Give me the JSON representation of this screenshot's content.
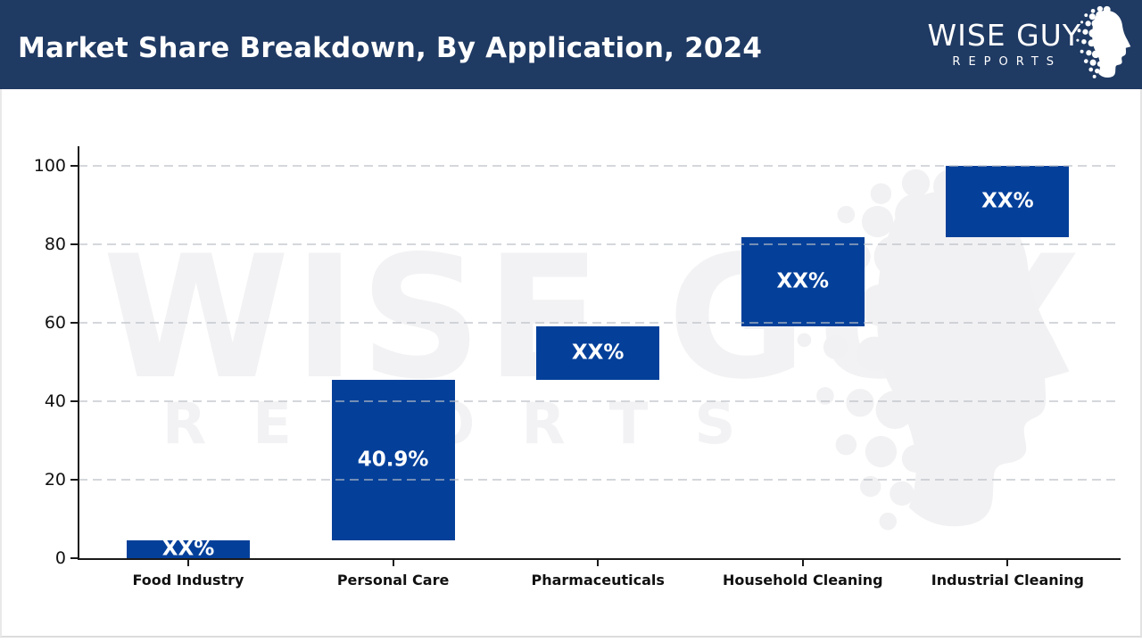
{
  "header": {
    "title": "Market Share Breakdown, By Application, 2024"
  },
  "logo": {
    "line1": "WISE GUY",
    "line2": "REPORTS"
  },
  "watermark": {
    "line1": "WISE GUY",
    "line2": "REPORTS"
  },
  "chart_data": {
    "type": "bar",
    "subtype": "floating-waterfall",
    "title": "Market Share Breakdown, By Application, 2024",
    "categories": [
      "Food Industry",
      "Personal Care",
      "Pharmaceuticals",
      "Household Cleaning",
      "Industrial Cleaning"
    ],
    "bars": [
      {
        "category": "Food Industry",
        "start": 0,
        "end": 4.5,
        "label": "XX%"
      },
      {
        "category": "Personal Care",
        "start": 4.5,
        "end": 45.4,
        "label": "40.9%"
      },
      {
        "category": "Pharmaceuticals",
        "start": 45.4,
        "end": 59.2,
        "label": "XX%"
      },
      {
        "category": "Household Cleaning",
        "start": 59.2,
        "end": 81.8,
        "label": "XX%"
      },
      {
        "category": "Industrial Cleaning",
        "start": 81.8,
        "end": 100,
        "label": "XX%"
      }
    ],
    "xlabel": "",
    "ylabel": "",
    "ylim": [
      0,
      100
    ],
    "yticks": [
      0,
      20,
      40,
      60,
      80,
      100
    ],
    "grid": "horizontal-dashed",
    "legend": "none",
    "bar_color": "#04409a",
    "bar_label_color": "#ffffff"
  }
}
